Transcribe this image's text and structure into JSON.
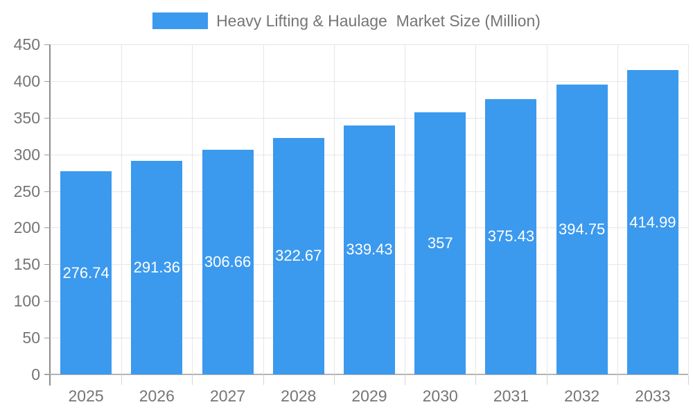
{
  "chart_data": {
    "type": "bar",
    "title": "Heavy Lifting & Haulage  Market Size (Million)",
    "legend": [
      "Heavy Lifting & Haulage  Market Size (Million)"
    ],
    "legend_position": "top-center",
    "categories": [
      "2025",
      "2026",
      "2027",
      "2028",
      "2029",
      "2030",
      "2031",
      "2032",
      "2033"
    ],
    "series": [
      {
        "name": "Heavy Lifting & Haulage  Market Size (Million)",
        "values": [
          276.74,
          291.36,
          306.66,
          322.67,
          339.43,
          357,
          375.43,
          394.75,
          414.99
        ],
        "value_labels": [
          "276.74",
          "291.36",
          "306.66",
          "322.67",
          "339.43",
          "357",
          "375.43",
          "394.75",
          "414.99"
        ]
      }
    ],
    "xlabel": "",
    "ylabel": "",
    "ylim": [
      0,
      450
    ],
    "yticks": [
      0,
      50,
      100,
      150,
      200,
      250,
      300,
      350,
      400,
      450
    ],
    "grid": true,
    "value_label_position": "center-of-bar",
    "colors": {
      "bar": "#3B99EE",
      "grid": "#E6E6E6",
      "y_axis": "#8C8C8C",
      "x_axis": "#B3B3B3",
      "y_tick": "#9A9A9A",
      "category_tick": "#D4D4D4",
      "axis_text": "#757575",
      "value_label_text": "#FFFFFF",
      "background": "#FFFFFF"
    }
  }
}
